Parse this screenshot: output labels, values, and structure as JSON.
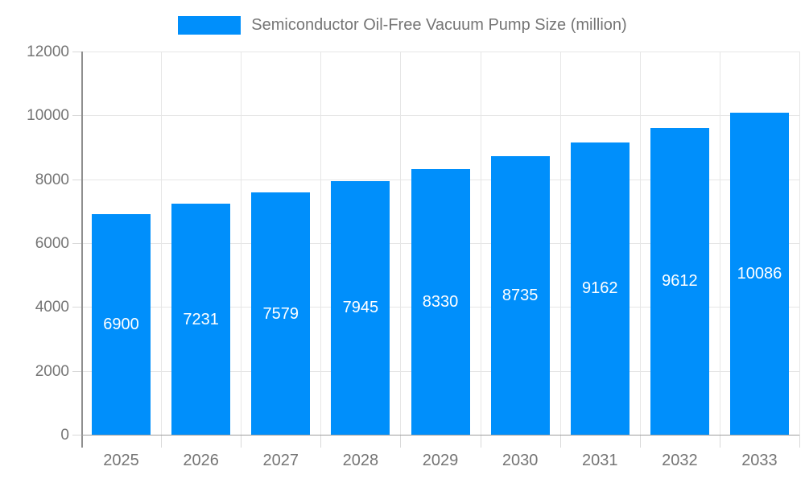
{
  "legend": {
    "label": "Semiconductor Oil-Free Vacuum Pump Size (million)",
    "swatch_color": "#008FFB"
  },
  "chart_data": {
    "type": "bar",
    "title": "Semiconductor Oil-Free Vacuum Pump Size (million)",
    "categories": [
      "2025",
      "2026",
      "2027",
      "2028",
      "2029",
      "2030",
      "2031",
      "2032",
      "2033"
    ],
    "series": [
      {
        "name": "Semiconductor Oil-Free Vacuum Pump Size (million)",
        "values": [
          6900,
          7231,
          7579,
          7945,
          8330,
          8735,
          9162,
          9612,
          10086
        ]
      }
    ],
    "xlabel": "",
    "ylabel": "",
    "ylim": [
      0,
      12000
    ],
    "yticks": [
      0,
      2000,
      4000,
      6000,
      8000,
      10000,
      12000
    ],
    "grid": true,
    "legend_position": "top",
    "data_labels": "inside-center",
    "colors": {
      "bar": "#008FFB",
      "data_label": "#FFFFFF",
      "axis_label": "#757575",
      "gridline": "#E6E6E6",
      "axis_line": "#9E9E9E"
    }
  }
}
